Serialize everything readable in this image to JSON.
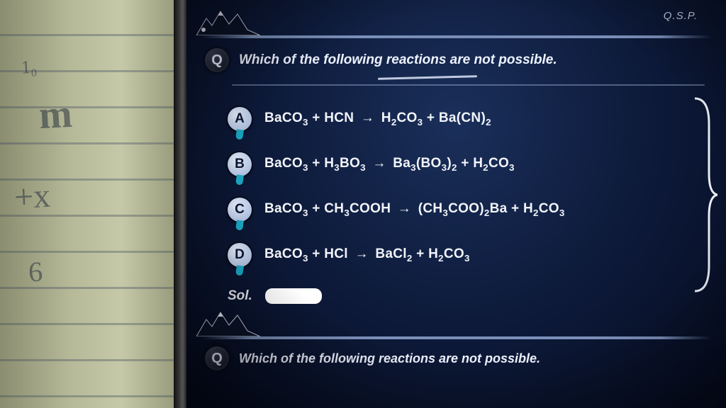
{
  "colors": {
    "screen_bg_center": "#1a2f5a",
    "screen_bg_outer": "#050b1f",
    "text": "#eef2ff",
    "rule": "#7a8fb8",
    "badge_light": "#e8f0ff",
    "badge_dark": "#9fb4da",
    "drip": "#1aa8c4",
    "blank": "#ffffff",
    "paper_l": "#8a8d6f",
    "paper_r": "#c5c9a8"
  },
  "header": {
    "tag": "Q.S.P."
  },
  "question": {
    "badge": "Q",
    "text": "Which of the following reactions are not possible."
  },
  "options": [
    {
      "letter": "A",
      "formula": "BaCO<sub>3</sub> + HCN <span class='arrow'>→</span> H<sub>2</sub>CO<sub>3</sub> + Ba(CN)<sub>2</sub>"
    },
    {
      "letter": "B",
      "formula": "BaCO<sub>3</sub> + H<sub>3</sub>BO<sub>3</sub> <span class='arrow'>→</span> Ba<sub>3</sub>(BO<sub>3</sub>)<sub>2</sub> + H<sub>2</sub>CO<sub>3</sub>"
    },
    {
      "letter": "C",
      "formula": "BaCO<sub>3</sub> + CH<sub>3</sub>COOH <span class='arrow'>→</span> (CH<sub>3</sub>COO)<sub>2</sub>Ba + H<sub>2</sub>CO<sub>3</sub>"
    },
    {
      "letter": "D",
      "formula": "BaCO<sub>3</sub> + HCl <span class='arrow'>→</span> BaCl<sub>2</sub> + H<sub>2</sub>CO<sub>3</sub>"
    }
  ],
  "solution": {
    "label": "Sol."
  },
  "question2": {
    "badge": "Q",
    "text": "Which of the following reactions are not possible."
  },
  "scribbles": {
    "s1": "1₀",
    "s2": "m",
    "s3": "+x",
    "s4": "6"
  }
}
